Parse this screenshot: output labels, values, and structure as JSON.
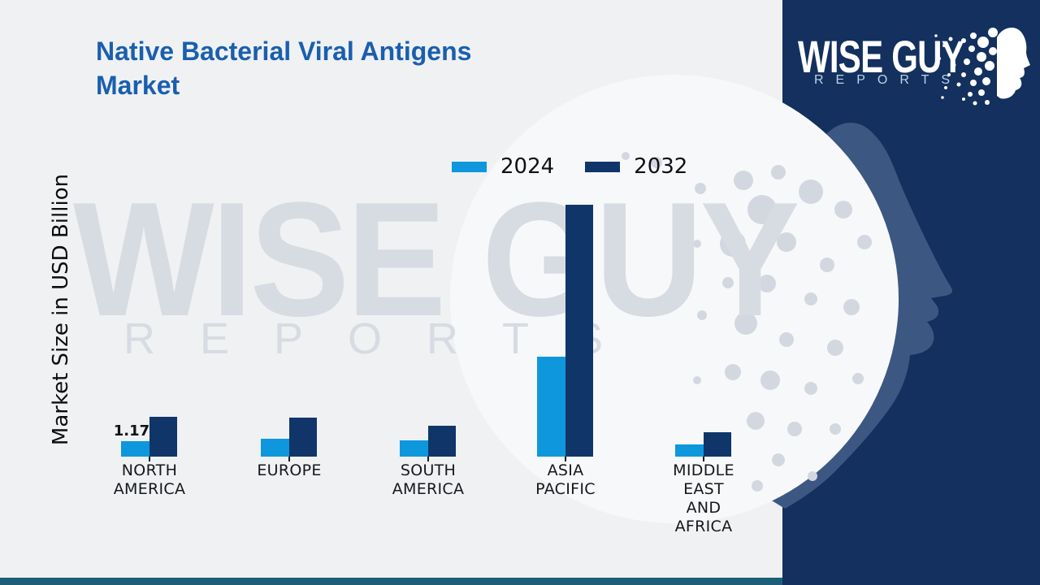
{
  "title": {
    "text": "Native Bacterial Viral Antigens Market",
    "color": "#1a5fae"
  },
  "watermark": {
    "line1": "WISE GUY",
    "line2": "REPORTS",
    "color": "#d7dbe2"
  },
  "brand": {
    "line1": "WISE GUY",
    "line2": "REPORTS"
  },
  "colors": {
    "background": "#eff1f3",
    "brand_panel": "#13305e",
    "brand_face": "#3c5882",
    "watermark_circle": "#f7f8fa",
    "watermark_dots": "#d3d8e0",
    "footer_bar": "#1d5e78",
    "series_2024": "#0e97dd",
    "series_2032": "#103669",
    "axis_text": "#0b0d0f"
  },
  "chart_data": {
    "type": "bar",
    "title": "Native Bacterial Viral Antigens Market",
    "xlabel": "",
    "ylabel": "Market Size in USD Billion",
    "categories": [
      "NORTH AMERICA",
      "EUROPE",
      "SOUTH AMERICA",
      "ASIA PACIFIC",
      "MIDDLE EAST AND AFRICA"
    ],
    "series": [
      {
        "name": "2024",
        "color": "#0e97dd",
        "values": [
          1.17,
          1.37,
          1.22,
          7.7,
          0.95
        ]
      },
      {
        "name": "2032",
        "color": "#103669",
        "values": [
          3.04,
          2.98,
          2.38,
          19.4,
          1.88
        ]
      }
    ],
    "value_labels": [
      {
        "category_index": 0,
        "series": "2024",
        "text": "1.17"
      }
    ],
    "ylim": [
      0,
      20
    ],
    "grid": false,
    "axis_line": false,
    "legend_position": "top-center",
    "unit": "USD Billion"
  }
}
